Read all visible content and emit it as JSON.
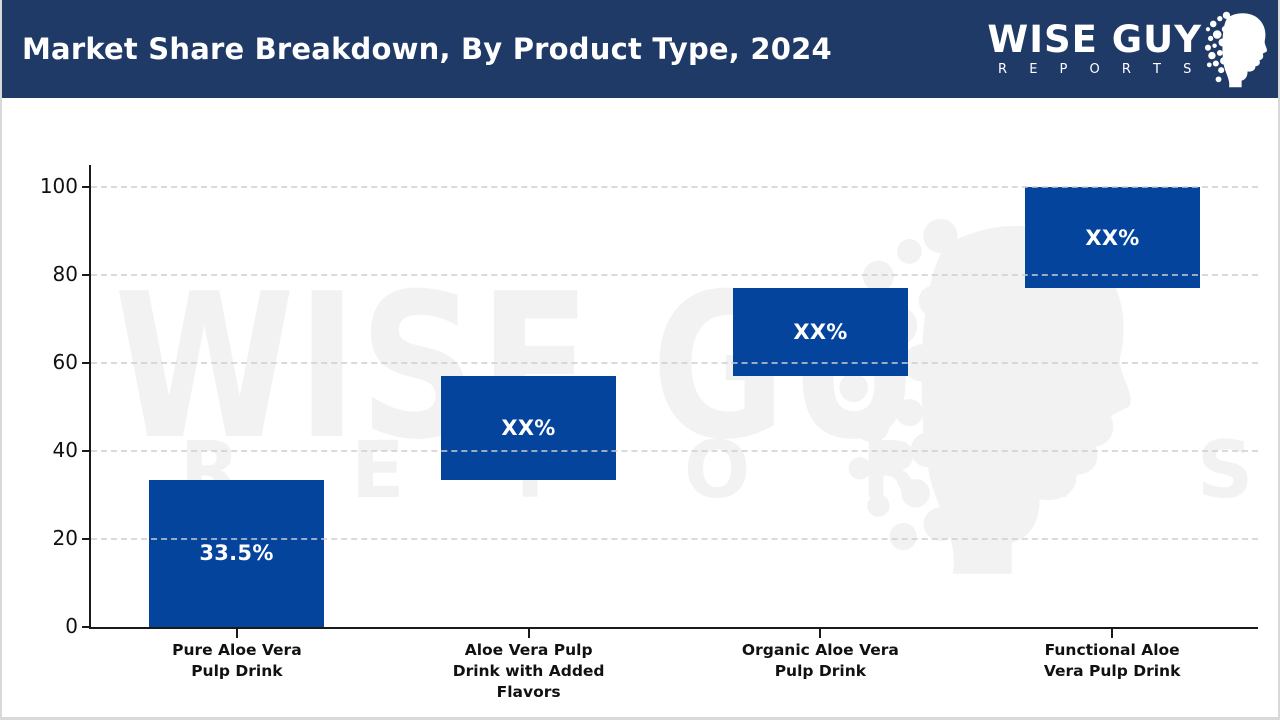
{
  "header": {
    "title": "Market Share Breakdown, By Product Type, 2024",
    "bg_color": "#1F3A66",
    "logo": {
      "line1": "WISE GUY",
      "line2": "R E P O R T S"
    }
  },
  "watermark": {
    "line1": "WISE GUY",
    "line2": "R E P O R T S"
  },
  "chart_data": {
    "type": "bar",
    "subtype": "waterfall",
    "title": "Market Share Breakdown, By Product Type, 2024",
    "categories": [
      "Pure Aloe Vera\nPulp Drink",
      "Aloe Vera Pulp\nDrink with Added\nFlavors",
      "Organic Aloe Vera\nPulp Drink",
      "Functional Aloe\nVera Pulp Drink"
    ],
    "segments": [
      {
        "start": 0,
        "end": 33.5,
        "label": "33.5%"
      },
      {
        "start": 33.5,
        "end": 57,
        "label": "XX%"
      },
      {
        "start": 57,
        "end": 77,
        "label": "XX%"
      },
      {
        "start": 77,
        "end": 100,
        "label": "XX%"
      }
    ],
    "ylabel": "",
    "xlabel": "",
    "ylim": [
      0,
      105
    ],
    "yticks": [
      0,
      20,
      40,
      60,
      80,
      100
    ],
    "grid": "horizontal-dashed",
    "bar_color": "#05449C",
    "value_label_color": "#ffffff",
    "units": "percent market share"
  }
}
